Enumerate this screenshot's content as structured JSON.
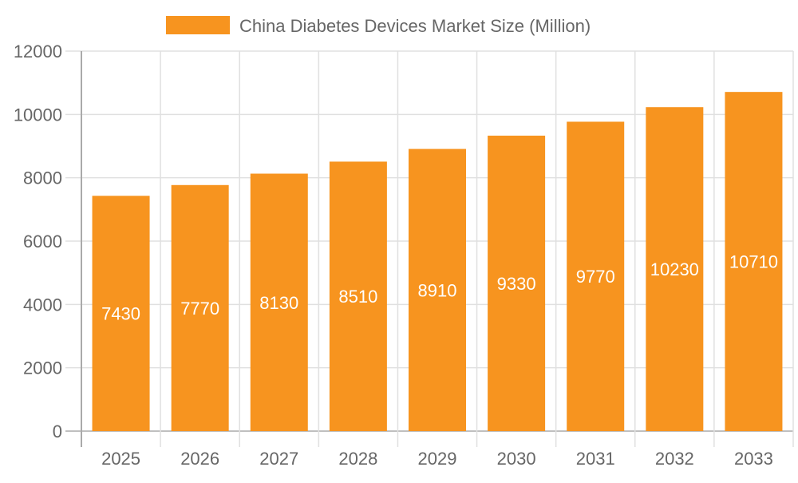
{
  "chart_data": {
    "type": "bar",
    "title": "",
    "xlabel": "",
    "ylabel": "",
    "categories": [
      "2025",
      "2026",
      "2027",
      "2028",
      "2029",
      "2030",
      "2031",
      "2032",
      "2033"
    ],
    "series": [
      {
        "name": "China Diabetes Devices Market Size (Million)",
        "values": [
          7430,
          7770,
          8130,
          8510,
          8910,
          9330,
          9770,
          10230,
          10710
        ],
        "color": "#f7941f"
      }
    ],
    "ylim": [
      0,
      12000
    ],
    "yticks": [
      0,
      2000,
      4000,
      6000,
      8000,
      10000,
      12000
    ],
    "grid": true,
    "legend": "top-center",
    "data_labels": true
  }
}
